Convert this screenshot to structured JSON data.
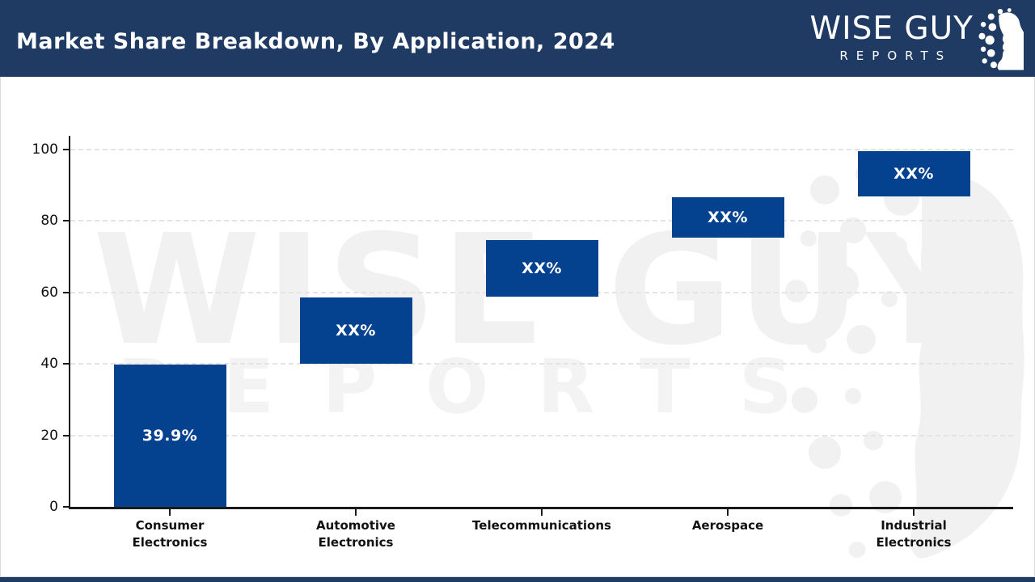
{
  "header": {
    "logo": {
      "line1": "WISE GUY",
      "line2": "REPORTS"
    }
  },
  "watermark": {
    "line1": "WISE GUY",
    "line2": "REPORTS"
  },
  "chart_data": {
    "type": "bar",
    "subtype": "waterfall",
    "title": "Market Share Breakdown, By Application, 2024",
    "categories": [
      "Consumer\nElectronics",
      "Automotive\nElectronics",
      "Telecommunications",
      "Aerospace",
      "Industrial\nElectronics"
    ],
    "segments": [
      {
        "category": "Consumer Electronics",
        "start": 0,
        "end": 39.9,
        "label": "39.9%"
      },
      {
        "category": "Automotive Electronics",
        "start": 40.1,
        "end": 58.6,
        "label": "XX%"
      },
      {
        "category": "Telecommunications",
        "start": 58.9,
        "end": 74.7,
        "label": "XX%"
      },
      {
        "category": "Aerospace",
        "start": 75.3,
        "end": 86.6,
        "label": "XX%"
      },
      {
        "category": "Industrial Electronics",
        "start": 86.8,
        "end": 99.6,
        "label": "XX%"
      }
    ],
    "ylim": [
      0,
      100
    ],
    "yticks": [
      0,
      20,
      40,
      60,
      80,
      100
    ],
    "xlabel": "",
    "ylabel": "",
    "grid": "horizontal-dashed",
    "legend": "none",
    "colors": {
      "bar": "#04418f",
      "bar_label": "#ffffff",
      "grid": "#e4e4e4",
      "axis": "#1a1a1a",
      "header_bg": "#1f3a63",
      "footer_bg": "#1f3a63",
      "watermark": "#f1f1f1"
    }
  }
}
